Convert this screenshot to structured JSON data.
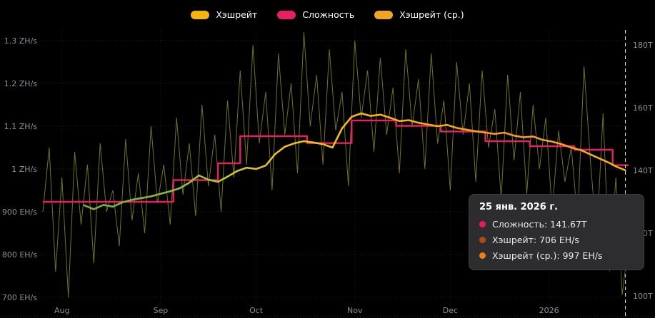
{
  "legend": {
    "items": [
      {
        "label": "Хэшрейт",
        "color": "#f5b50a"
      },
      {
        "label": "Сложность",
        "color": "#e82063"
      },
      {
        "label": "Хэшрейт (ср.)",
        "color": "#f0a622"
      }
    ]
  },
  "tooltip": {
    "title": "25 янв. 2026 г.",
    "rows": [
      {
        "text": "Сложность: 141.67T",
        "color": "#f0185c"
      },
      {
        "text": "Хэшрейт: 706 EH/s",
        "color": "#ad4e1a"
      },
      {
        "text": "Хэшрейт (ср.): 997 EH/s",
        "color": "#ef7d1a"
      }
    ]
  },
  "chart_data": {
    "type": "line",
    "background": "#000000",
    "grid": "dotted-horizontal",
    "legend_position": "top-center",
    "x_axis": {
      "total_days": 184,
      "ticks": [
        {
          "label": "Aug",
          "day": 6
        },
        {
          "label": "Sep",
          "day": 37
        },
        {
          "label": "Oct",
          "day": 67
        },
        {
          "label": "Nov",
          "day": 98
        },
        {
          "label": "Dec",
          "day": 128
        },
        {
          "label": "2026",
          "day": 159
        }
      ]
    },
    "y_left": {
      "unit": "EH/s",
      "range": [
        668,
        1328
      ],
      "ticks": [
        {
          "label": "1.3 ZH/s",
          "value": 1300
        },
        {
          "label": "1.2 ZH/s",
          "value": 1200
        },
        {
          "label": "1.1 ZH/s",
          "value": 1100
        },
        {
          "label": "1 ZH/s",
          "value": 1000
        },
        {
          "label": "900 EH/s",
          "value": 900
        },
        {
          "label": "800 EH/s",
          "value": 800
        },
        {
          "label": "700 EH/s",
          "value": 700
        }
      ]
    },
    "y_right": {
      "unit": "T",
      "range": [
        94,
        185
      ],
      "ticks": [
        {
          "label": "180T",
          "value": 180
        },
        {
          "label": "160T",
          "value": 160
        },
        {
          "label": "140T",
          "value": 140
        },
        {
          "label": "120T",
          "value": 120
        },
        {
          "label": "100T",
          "value": 100
        }
      ]
    },
    "series": [
      {
        "name": "Хэшрейт",
        "axis": "left",
        "unit": "EH/s",
        "color": "#73731e",
        "step_days": 2,
        "start_day": 0,
        "values": [
          900,
          1050,
          760,
          980,
          700,
          1040,
          870,
          1010,
          780,
          1060,
          900,
          950,
          820,
          1070,
          880,
          990,
          850,
          1100,
          920,
          1010,
          870,
          1120,
          940,
          1060,
          890,
          1150,
          960,
          1080,
          900,
          1160,
          980,
          1230,
          1010,
          1290,
          1060,
          1180,
          950,
          1270,
          1080,
          1200,
          990,
          1320,
          1100,
          1220,
          1010,
          1280,
          1090,
          1180,
          960,
          1300,
          1120,
          1230,
          1040,
          1260,
          1080,
          1190,
          990,
          1280,
          1100,
          1210,
          1000,
          1270,
          1060,
          1160,
          950,
          1250,
          1080,
          1200,
          970,
          1230,
          1050,
          1140,
          930,
          1220,
          1020,
          1180,
          940,
          1150,
          1000,
          1120,
          900,
          1090,
          970,
          1050,
          880,
          1240,
          1020,
          840,
          1130,
          760,
          980,
          706,
          830
        ]
      },
      {
        "name": "Сложность",
        "axis": "right",
        "unit": "T",
        "style": "step",
        "color": "#e82063",
        "points": [
          [
            0,
            130.0
          ],
          [
            41,
            136.9
          ],
          [
            55,
            142.3
          ],
          [
            62,
            150.9
          ],
          [
            83,
            148.7
          ],
          [
            97,
            155.9
          ],
          [
            111,
            154.2
          ],
          [
            125,
            152.4
          ],
          [
            139,
            149.3
          ],
          [
            153,
            147.7
          ],
          [
            167,
            146.6
          ],
          [
            179,
            141.67
          ]
        ],
        "end_day": 184
      },
      {
        "name": "Хэшрейт (ср.)",
        "axis": "left",
        "unit": "EH/s",
        "style": "smooth",
        "gradient": [
          [
            0,
            "#6da33f"
          ],
          [
            0.24,
            "#8cc043"
          ],
          [
            0.33,
            "#cfc22e"
          ],
          [
            0.42,
            "#f2c019"
          ],
          [
            0.6,
            "#f5b50a"
          ],
          [
            0.8,
            "#f29b1d"
          ],
          [
            0.92,
            "#f5a623"
          ],
          [
            1,
            "#f0b90b"
          ]
        ],
        "points": [
          [
            13,
            915
          ],
          [
            16,
            906
          ],
          [
            19,
            916
          ],
          [
            22,
            912
          ],
          [
            25,
            922
          ],
          [
            28,
            928
          ],
          [
            31,
            932
          ],
          [
            34,
            936
          ],
          [
            37,
            942
          ],
          [
            40,
            948
          ],
          [
            43,
            955
          ],
          [
            46,
            968
          ],
          [
            49,
            985
          ],
          [
            52,
            975
          ],
          [
            55,
            970
          ],
          [
            58,
            982
          ],
          [
            61,
            995
          ],
          [
            64,
            1003
          ],
          [
            67,
            1000
          ],
          [
            70,
            1008
          ],
          [
            73,
            1035
          ],
          [
            76,
            1052
          ],
          [
            79,
            1060
          ],
          [
            82,
            1065
          ],
          [
            85,
            1062
          ],
          [
            88,
            1058
          ],
          [
            91,
            1050
          ],
          [
            94,
            1095
          ],
          [
            97,
            1122
          ],
          [
            100,
            1130
          ],
          [
            103,
            1124
          ],
          [
            106,
            1127
          ],
          [
            109,
            1120
          ],
          [
            112,
            1112
          ],
          [
            115,
            1114
          ],
          [
            118,
            1108
          ],
          [
            121,
            1104
          ],
          [
            124,
            1100
          ],
          [
            127,
            1103
          ],
          [
            130,
            1096
          ],
          [
            133,
            1092
          ],
          [
            136,
            1088
          ],
          [
            139,
            1085
          ],
          [
            142,
            1082
          ],
          [
            145,
            1085
          ],
          [
            148,
            1078
          ],
          [
            151,
            1074
          ],
          [
            154,
            1076
          ],
          [
            157,
            1068
          ],
          [
            160,
            1064
          ],
          [
            163,
            1058
          ],
          [
            166,
            1050
          ],
          [
            169,
            1044
          ],
          [
            172,
            1034
          ],
          [
            175,
            1024
          ],
          [
            178,
            1014
          ],
          [
            180,
            1006
          ],
          [
            183,
            997
          ]
        ]
      }
    ],
    "marker": {
      "type": "dashed-vline",
      "day": 183,
      "color": "#e8e8e8"
    }
  }
}
